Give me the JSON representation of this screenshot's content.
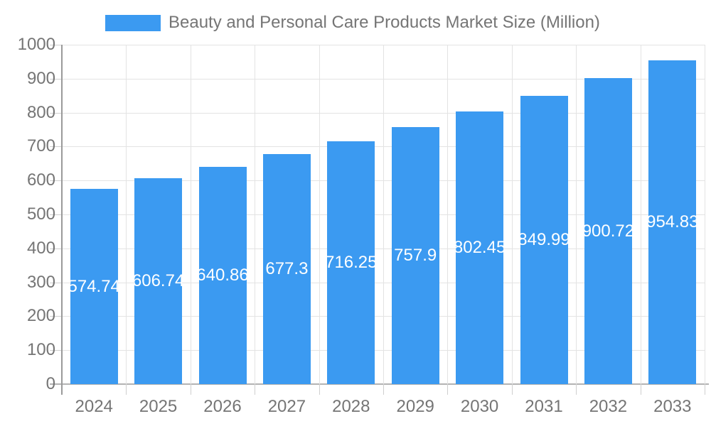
{
  "legend": {
    "label": "Beauty and Personal Care Products Market Size (Million)"
  },
  "chart_data": {
    "type": "bar",
    "title": "Beauty and Personal Care Products Market Size (Million)",
    "categories": [
      "2024",
      "2025",
      "2026",
      "2027",
      "2028",
      "2029",
      "2030",
      "2031",
      "2032",
      "2033"
    ],
    "series": [
      {
        "name": "Beauty and Personal Care Products Market Size (Million)",
        "values": [
          574.74,
          606.74,
          640.86,
          677.3,
          716.25,
          757.9,
          802.45,
          849.99,
          900.72,
          954.83
        ],
        "labels": [
          "574.74",
          "606.74",
          "640.86",
          "677.3",
          "716.25",
          "757.9",
          "802.45",
          "849.99",
          "900.72",
          "954.83"
        ],
        "color": "#3b9af1"
      }
    ],
    "xlabel": "",
    "ylabel": "",
    "ylim": [
      0,
      1000
    ],
    "yticks": [
      0,
      100,
      200,
      300,
      400,
      500,
      600,
      700,
      800,
      900,
      1000
    ],
    "grid": true,
    "legend_position": "top",
    "colors": {
      "bar": "#3b9af1",
      "bar_label_text": "#ffffff",
      "axis_text": "#757575",
      "gridline": "#e3e3e3",
      "axis_line": "#9a9a9a",
      "baseline": "#b3b3b3",
      "tick": "#cfcfcf",
      "background": "#ffffff"
    }
  }
}
